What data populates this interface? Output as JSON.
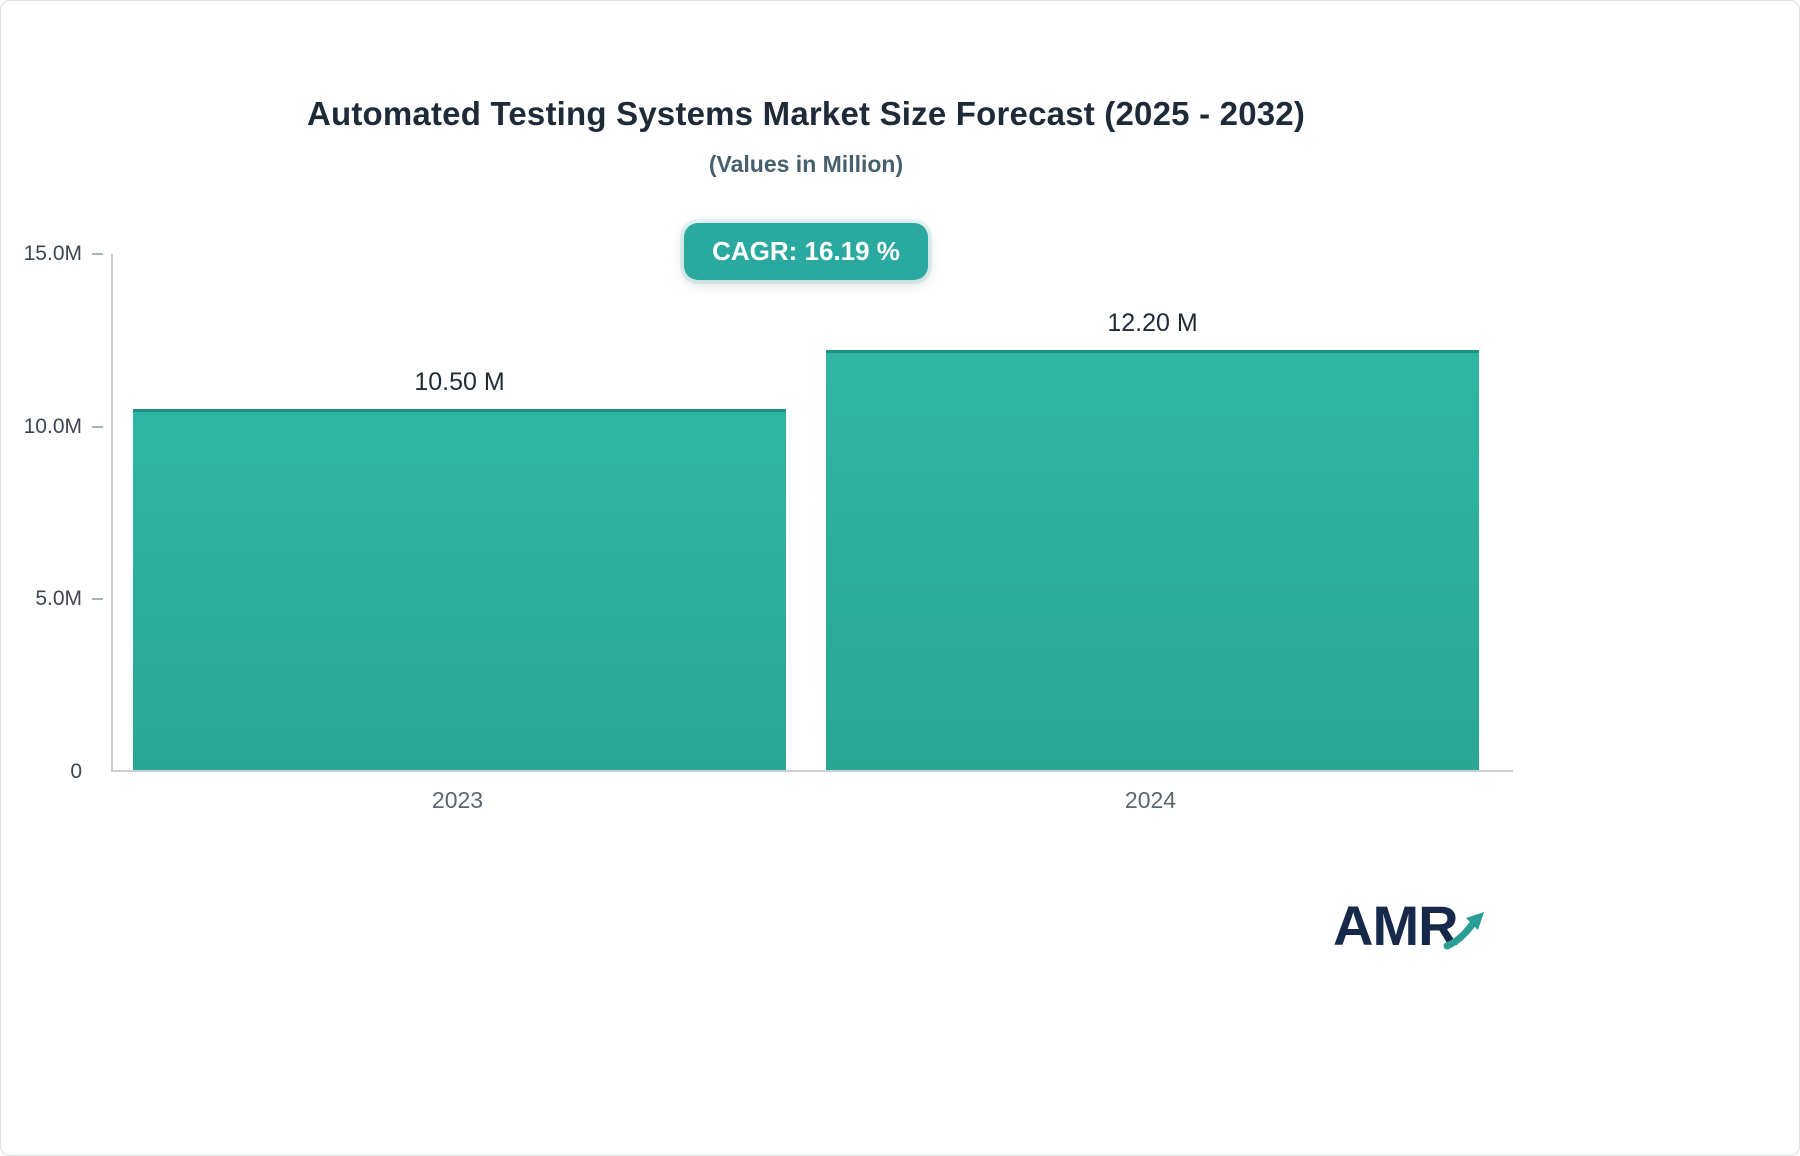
{
  "header": {
    "title": "Automated Testing Systems Market Size Forecast (2025 - 2032)",
    "subtitle": "(Values in Million)",
    "cagr_badge": "CAGR: 16.19 %"
  },
  "logo": {
    "text": "AMR"
  },
  "colors": {
    "bar_teal": "#2DB0A0",
    "bar_top_edge": "#1F9287",
    "badge_teal": "#2AA9A0",
    "title_dark": "#1E2A37",
    "logo_navy": "#17294A",
    "axis_gray": "#C9CED3"
  },
  "chart_data": {
    "type": "bar",
    "categories": [
      "2023",
      "2024"
    ],
    "values": [
      10.5,
      12.2
    ],
    "value_labels": [
      "10.50 M",
      "12.20 M"
    ],
    "title": "Automated Testing Systems Market Size Forecast (2025 - 2032)",
    "subtitle": "(Values in Million)",
    "annotation": "CAGR: 16.19 %",
    "xlabel": "",
    "ylabel": "",
    "ylim": [
      0,
      15
    ],
    "ytick_values": [
      15,
      10,
      5,
      0
    ],
    "ytick_labels": [
      "15.0M",
      "10.0M",
      "5.0M",
      "0"
    ],
    "grid": false,
    "legend": false,
    "bar_color": "#2DB0A0"
  }
}
